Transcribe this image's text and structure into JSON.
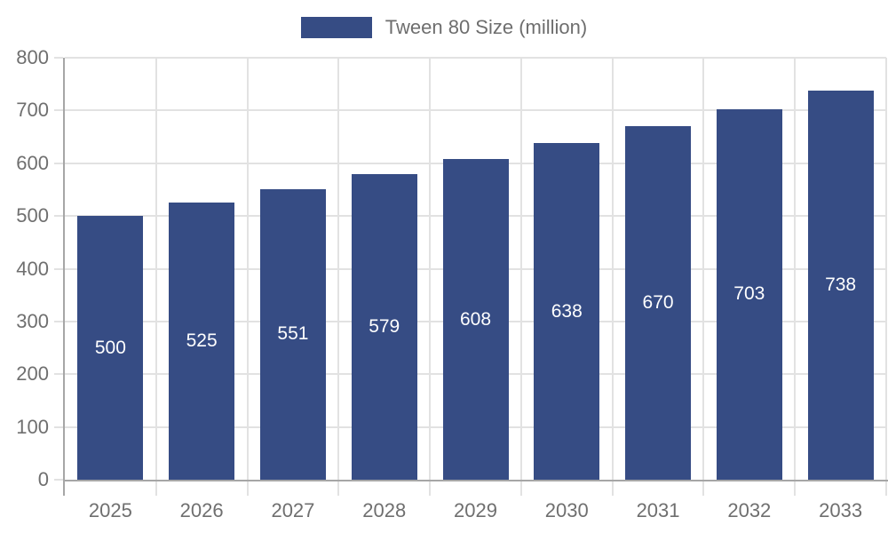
{
  "legend": {
    "label": "Tween 80 Size (million)"
  },
  "colors": {
    "bar": "#364C84",
    "bar_label": "#FFFFFF",
    "axis_line": "#A6A6A6",
    "grid_line": "#E2E2E2",
    "tick_text": "#6F6F6F",
    "legend_text": "#6E6E6E",
    "background": "#FFFFFF"
  },
  "chart_data": {
    "type": "bar",
    "title": "",
    "categories": [
      "2025",
      "2026",
      "2027",
      "2028",
      "2029",
      "2030",
      "2031",
      "2032",
      "2033"
    ],
    "series": [
      {
        "name": "Tween 80 Size (million)",
        "color": "#364C84",
        "values": [
          500,
          525,
          551,
          579,
          608,
          638,
          670,
          703,
          738
        ]
      }
    ],
    "value_labels": [
      500,
      525,
      551,
      579,
      608,
      638,
      670,
      703,
      738
    ],
    "value_label_position": "inside-center",
    "xlabel": "",
    "ylabel": "",
    "ylim": [
      0,
      800
    ],
    "yticks": [
      0,
      100,
      200,
      300,
      400,
      500,
      600,
      700,
      800
    ],
    "grid": true,
    "legend_position": "top-center"
  }
}
